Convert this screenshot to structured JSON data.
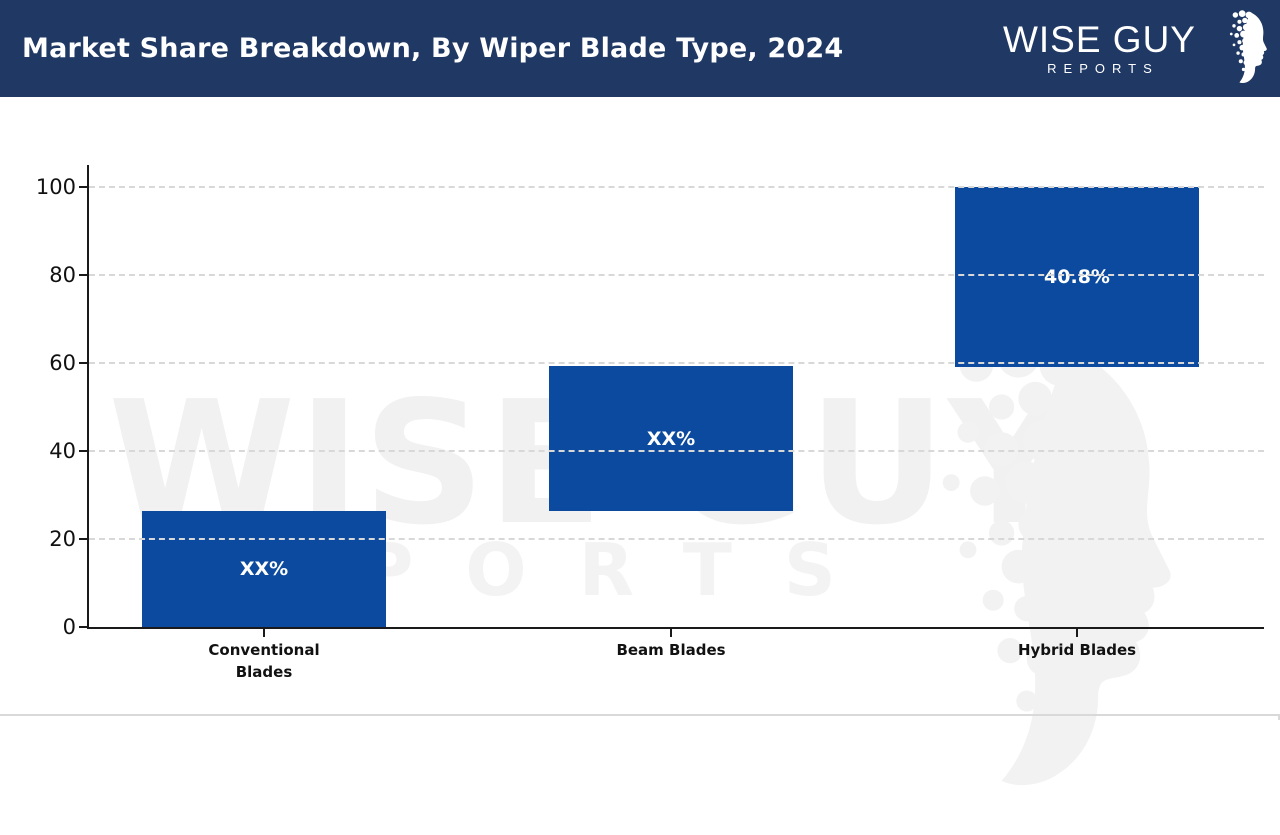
{
  "header": {
    "title": "Market Share Breakdown, By Wiper Blade Type, 2024",
    "logo": {
      "line1": "WISE GUY",
      "line2": "REPORTS"
    }
  },
  "watermark": {
    "line1": "WISE GUY",
    "line2": "REPORTS"
  },
  "chart_data": {
    "type": "bar",
    "subtype": "waterfall",
    "title": "Market Share Breakdown, By Wiper Blade Type, 2024",
    "categories": [
      "Conventional\nBlades",
      "Beam Blades",
      "Hybrid Blades"
    ],
    "bars": [
      {
        "category": "Conventional Blades",
        "label": "XX%",
        "start": 0,
        "end": 26.3
      },
      {
        "category": "Beam Blades",
        "label": "XX%",
        "start": 26.3,
        "end": 59.3
      },
      {
        "category": "Hybrid Blades",
        "label": "40.8%",
        "start": 59.2,
        "end": 100
      }
    ],
    "xlabel": "",
    "ylabel": "",
    "ylim": [
      0,
      105
    ],
    "yticks": [
      0,
      20,
      40,
      60,
      80,
      100
    ],
    "grid": "horizontal-dashed",
    "legend": "none",
    "bar_color": "#0b4a9e",
    "bar_label_color": "#ffffff",
    "header_color": "#1f3864",
    "gridline_color": "#d8d8d8",
    "background": "#ffffff"
  }
}
